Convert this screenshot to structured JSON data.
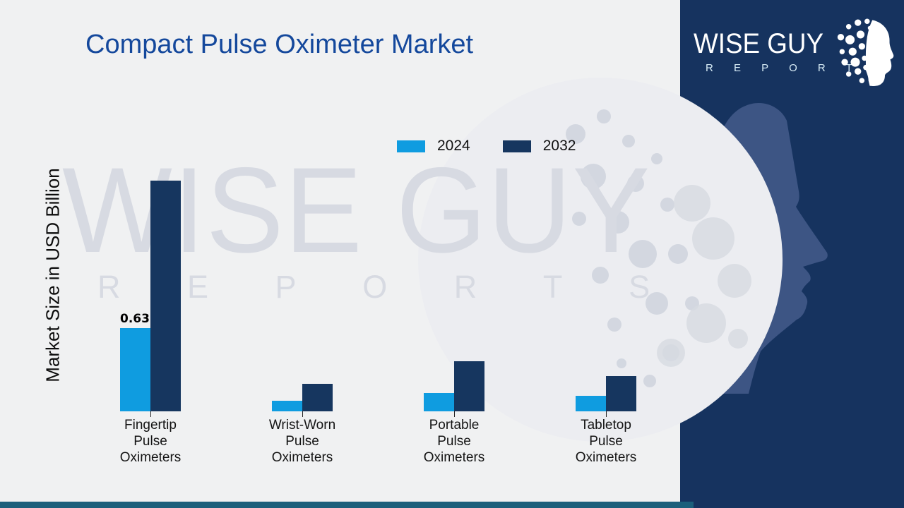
{
  "title": {
    "text": "Compact Pulse Oximeter Market"
  },
  "y_axis": {
    "label": "Market Size in USD Billion"
  },
  "legend": {
    "items": [
      {
        "label": "2024",
        "color": "#0f9ce0"
      },
      {
        "label": "2032",
        "color": "#16365f"
      }
    ]
  },
  "watermark": {
    "line1": "WISE GUY",
    "line2": "R E P O R T S",
    "head_icon": "dotted-head-profile-icon"
  },
  "logo": {
    "line1": "WISE GUY",
    "line2": "R E P O R T S",
    "head_icon": "dotted-head-profile-icon"
  },
  "colors": {
    "background": "#f0f1f2",
    "title_text": "#14489c",
    "brand_panel": "#16335f",
    "footer_bar": "#1b5f7b",
    "bar_2024": "#0f9ce0",
    "bar_2032": "#16365f"
  },
  "chart_data": {
    "type": "bar",
    "title": "Compact Pulse Oximeter Market",
    "xlabel": "",
    "ylabel": "Market Size in USD Billion",
    "value_unit": "USD Billion",
    "categories": [
      "Fingertip\nPulse\nOximeters",
      "Wrist-Worn\nPulse\nOximeters",
      "Portable\nPulse\nOximeters",
      "Tabletop\nPulse\nOximeters"
    ],
    "series": [
      {
        "name": "2024",
        "color": "#0f9ce0",
        "values": [
          0.63,
          0.08,
          0.14,
          0.12
        ],
        "data_labels": [
          "0.63",
          "",
          "",
          ""
        ]
      },
      {
        "name": "2032",
        "color": "#16365f",
        "values": [
          1.75,
          0.21,
          0.38,
          0.27
        ],
        "data_labels": [
          "",
          "",
          "",
          ""
        ]
      }
    ],
    "ylim": [
      0,
      1.9
    ],
    "grid": false,
    "axis_lines": false,
    "legend_position": "top-center"
  }
}
